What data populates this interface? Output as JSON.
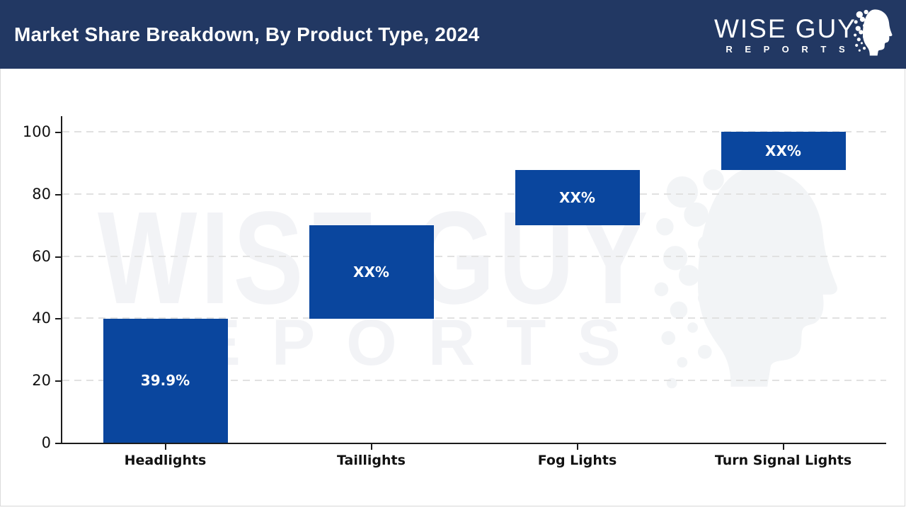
{
  "header": {
    "title": "Market Share Breakdown, By Product Type, 2024",
    "bg_color": "#223863",
    "text_color": "#ffffff"
  },
  "logo": {
    "line1": "WISE GUY",
    "line2": "R E P O R T S"
  },
  "watermark": {
    "line1": "WISE GUY",
    "line2": "REPORTS"
  },
  "chart_data": {
    "type": "bar",
    "subtype": "waterfall",
    "title": "Market Share Breakdown, By Product Type, 2024",
    "categories": [
      "Headlights",
      "Taillights",
      "Fog Lights",
      "Turn Signal Lights"
    ],
    "segments": [
      {
        "category": "Headlights",
        "start": 0,
        "end": 39.9,
        "label": "39.9%"
      },
      {
        "category": "Taillights",
        "start": 39.9,
        "end": 70,
        "label": "XX%"
      },
      {
        "category": "Fog Lights",
        "start": 70,
        "end": 87.7,
        "label": "XX%"
      },
      {
        "category": "Turn Signal Lights",
        "start": 87.7,
        "end": 100,
        "label": "XX%"
      }
    ],
    "xlabel": "",
    "ylabel": "",
    "yticks": [
      0,
      20,
      40,
      60,
      80,
      100
    ],
    "ylim": [
      0,
      105
    ],
    "grid": "horizontal-dashed",
    "legend": "none",
    "bar_color": "#0a469e",
    "bar_label_color": "#ffffff",
    "gridline_color": "#e1e1e1",
    "axis_color": "#1c1c1c"
  }
}
